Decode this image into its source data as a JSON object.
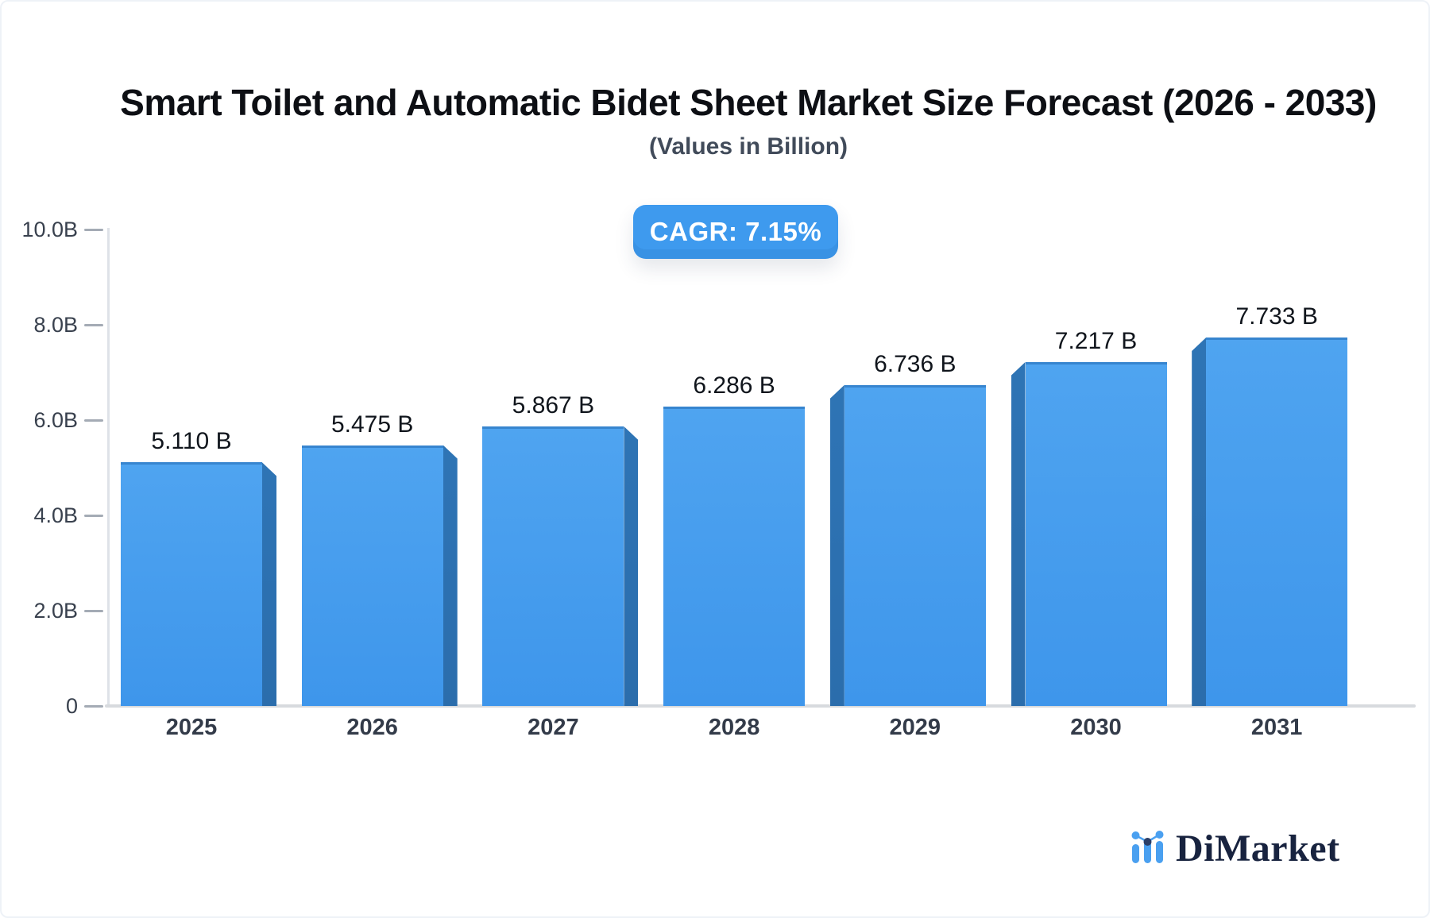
{
  "header": {
    "title": "Smart Toilet and Automatic Bidet Sheet Market Size Forecast (2026 - 2033)",
    "subtitle": "(Values in Billion)",
    "cagr_label": "CAGR: 7.15%"
  },
  "chart_data": {
    "type": "bar",
    "title": "Smart Toilet and Automatic Bidet Sheet Market Size Forecast (2026 - 2033)",
    "subtitle": "(Values in Billion)",
    "categories": [
      "2025",
      "2026",
      "2027",
      "2028",
      "2029",
      "2030",
      "2031"
    ],
    "values": [
      5.11,
      5.475,
      5.867,
      6.286,
      6.736,
      7.217,
      7.733
    ],
    "value_labels": [
      "5.110 B",
      "5.475 B",
      "5.867 B",
      "6.286 B",
      "6.736 B",
      "7.217 B",
      "7.733 B"
    ],
    "unit": "Billion",
    "cagr": "7.15%",
    "ylim": [
      0,
      10
    ],
    "yticks": [
      {
        "label": "10.0B",
        "value": 10
      },
      {
        "label": "8.0B",
        "value": 8
      },
      {
        "label": "6.0B",
        "value": 6
      },
      {
        "label": "4.0B",
        "value": 4
      },
      {
        "label": "2.0B",
        "value": 2
      },
      {
        "label": "0",
        "value": 0
      }
    ],
    "grid": false,
    "legend": false
  },
  "colors": {
    "bar_face": "#459eed",
    "bar_side": "#2e74b5",
    "badge_background": "#3e9aee",
    "badge_text": "#ffffff",
    "axis_line": "#dee2e8",
    "text_dark": "#0d0f14",
    "logo_navy": "#18233f",
    "logo_blue": "#4aa0f0"
  },
  "brand": {
    "name": "DiMarket",
    "icon": "bar-chart-logo-icon"
  }
}
